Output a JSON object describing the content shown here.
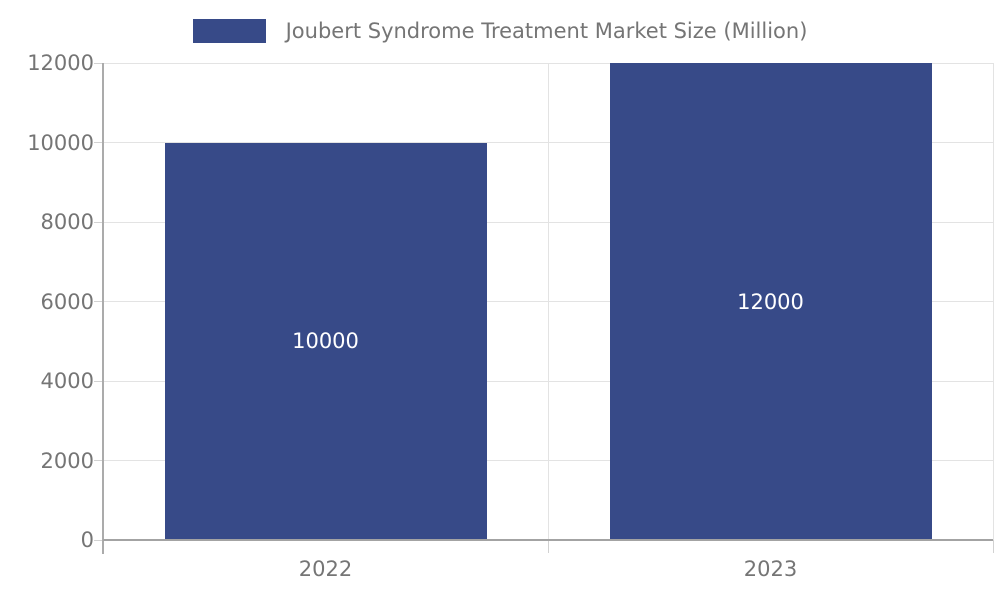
{
  "chart_data": {
    "type": "bar",
    "title": "Joubert Syndrome Treatment Market Size (Million)",
    "categories": [
      "2022",
      "2023"
    ],
    "series": [
      {
        "name": "Joubert Syndrome Treatment Market Size (Million)",
        "values": [
          10000,
          12000
        ]
      }
    ],
    "bar_value_labels": [
      "10000",
      "12000"
    ],
    "xlabel": "",
    "ylabel": "",
    "ylim": [
      0,
      12000
    ],
    "ytick_step": 2000,
    "yticks": [
      0,
      2000,
      4000,
      6000,
      8000,
      10000,
      12000
    ],
    "grid": "on",
    "value_label_position": "inside-center",
    "legend_position": "top-center",
    "colors": {
      "bar": "#374A88",
      "grid_line": "#E3E3E3",
      "x_axis_line": "#A3A3A3",
      "y_axis_line": "#ABABAB",
      "tick_line": "#D2D2D2",
      "text": "#757575",
      "bar_label": "#FFFFFF",
      "background": "#FFFFFF"
    }
  }
}
